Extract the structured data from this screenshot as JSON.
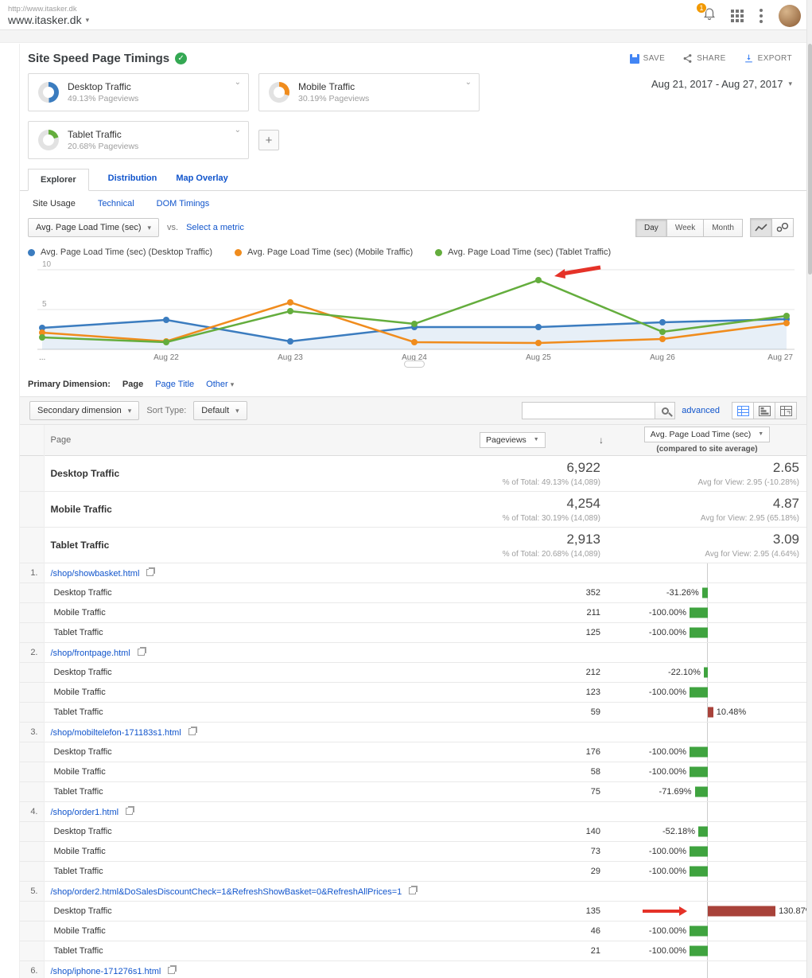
{
  "icons": {
    "caret_down": "▾",
    "select_caret": "▼",
    "sort_desc": "↓",
    "plus": "+",
    "check": "✓",
    "chevron": "⌄"
  },
  "topbar": {
    "url": "http://www.itasker.dk",
    "account": "www.itasker.dk",
    "badge": "1"
  },
  "header": {
    "title": "Site Speed Page Timings",
    "save": "SAVE",
    "share": "SHARE",
    "export": "EXPORT"
  },
  "segments": {
    "cards": [
      {
        "name": "Desktop Traffic",
        "detail": "49.13% Pageviews",
        "color": "#3b7cbf",
        "pct": 49.13
      },
      {
        "name": "Mobile Traffic",
        "detail": "30.19% Pageviews",
        "color": "#f08c1d",
        "pct": 30.19
      },
      {
        "name": "Tablet Traffic",
        "detail": "20.68% Pageviews",
        "color": "#64ad3d",
        "pct": 20.68
      }
    ]
  },
  "date_range": "Aug 21, 2017 - Aug 27, 2017",
  "tabs": {
    "explorer": "Explorer",
    "distribution": "Distribution",
    "map_overlay": "Map Overlay"
  },
  "subtabs": {
    "site_usage": "Site Usage",
    "technical": "Technical",
    "dom_timings": "DOM Timings"
  },
  "metric_bar": {
    "metric": "Avg. Page Load Time (sec)",
    "vs": "vs.",
    "select_metric": "Select a metric",
    "day": "Day",
    "week": "Week",
    "month": "Month"
  },
  "chart_data": {
    "type": "line",
    "x": [
      "...",
      "Aug 22",
      "Aug 23",
      "Aug 24",
      "Aug 25",
      "Aug 26",
      "Aug 27"
    ],
    "ylim": [
      0,
      10
    ],
    "yticks": [
      5,
      10
    ],
    "grid": true,
    "legend_position": "top",
    "series": [
      {
        "name": "Avg. Page Load Time (sec) (Desktop Traffic)",
        "color": "#3b7cbf",
        "area": true,
        "values": [
          2.7,
          3.7,
          1.0,
          2.8,
          2.8,
          3.4,
          3.8
        ]
      },
      {
        "name": "Avg. Page Load Time (sec) (Mobile Traffic)",
        "color": "#f08c1d",
        "area": false,
        "values": [
          2.1,
          1.0,
          5.9,
          0.9,
          0.8,
          1.3,
          3.3
        ]
      },
      {
        "name": "Avg. Page Load Time (sec) (Tablet Traffic)",
        "color": "#64ad3d",
        "area": false,
        "values": [
          1.5,
          0.9,
          4.8,
          3.2,
          8.7,
          2.2,
          4.2
        ]
      }
    ],
    "annotation": {
      "type": "arrow",
      "series": 2,
      "point": 4,
      "color": "#e53228"
    }
  },
  "dimension_bar": {
    "label": "Primary Dimension:",
    "page": "Page",
    "page_title": "Page Title",
    "other": "Other"
  },
  "toolbar": {
    "secondary_dimension": "Secondary dimension",
    "sort_type_label": "Sort Type:",
    "sort_value": "Default",
    "search_value": "",
    "advanced": "advanced"
  },
  "table": {
    "headers": {
      "page": "Page",
      "pageviews": "Pageviews",
      "metric": "Avg. Page Load Time (sec)",
      "metric_sub": "(compared to site average)"
    },
    "bar_colors": {
      "negative": "#3fa33f",
      "positive": "#a8423a",
      "axis": "#cccccc"
    },
    "summary": [
      {
        "name": "Desktop Traffic",
        "pageviews": "6,922",
        "pageviews_sub": "% of Total: 49.13% (14,089)",
        "value": "2.65",
        "value_sub": "Avg for View: 2.95 (-10.28%)"
      },
      {
        "name": "Mobile Traffic",
        "pageviews": "4,254",
        "pageviews_sub": "% of Total: 30.19% (14,089)",
        "value": "4.87",
        "value_sub": "Avg for View: 2.95 (65.18%)"
      },
      {
        "name": "Tablet Traffic",
        "pageviews": "2,913",
        "pageviews_sub": "% of Total: 20.68% (14,089)",
        "value": "3.09",
        "value_sub": "Avg for View: 2.95 (4.64%)"
      }
    ],
    "rows": [
      {
        "index": "1.",
        "url": "/shop/showbasket.html",
        "segments": [
          {
            "name": "Desktop Traffic",
            "pageviews": "352",
            "pct": "-31.26%",
            "value": -31.26
          },
          {
            "name": "Mobile Traffic",
            "pageviews": "211",
            "pct": "-100.00%",
            "value": -100
          },
          {
            "name": "Tablet Traffic",
            "pageviews": "125",
            "pct": "-100.00%",
            "value": -100
          }
        ]
      },
      {
        "index": "2.",
        "url": "/shop/frontpage.html",
        "segments": [
          {
            "name": "Desktop Traffic",
            "pageviews": "212",
            "pct": "-22.10%",
            "value": -22.1
          },
          {
            "name": "Mobile Traffic",
            "pageviews": "123",
            "pct": "-100.00%",
            "value": -100
          },
          {
            "name": "Tablet Traffic",
            "pageviews": "59",
            "pct": "10.48%",
            "value": 10.48
          }
        ]
      },
      {
        "index": "3.",
        "url": "/shop/mobiltelefon-171183s1.html",
        "segments": [
          {
            "name": "Desktop Traffic",
            "pageviews": "176",
            "pct": "-100.00%",
            "value": -100
          },
          {
            "name": "Mobile Traffic",
            "pageviews": "58",
            "pct": "-100.00%",
            "value": -100
          },
          {
            "name": "Tablet Traffic",
            "pageviews": "75",
            "pct": "-71.69%",
            "value": -71.69
          }
        ]
      },
      {
        "index": "4.",
        "url": "/shop/order1.html",
        "segments": [
          {
            "name": "Desktop Traffic",
            "pageviews": "140",
            "pct": "-52.18%",
            "value": -52.18
          },
          {
            "name": "Mobile Traffic",
            "pageviews": "73",
            "pct": "-100.00%",
            "value": -100
          },
          {
            "name": "Tablet Traffic",
            "pageviews": "29",
            "pct": "-100.00%",
            "value": -100
          }
        ]
      },
      {
        "index": "5.",
        "url": "/shop/order2.html&DoSalesDiscountCheck=1&RefreshShowBasket=0&RefreshAllPrices=1",
        "segments": [
          {
            "name": "Desktop Traffic",
            "pageviews": "135",
            "pct": "130.87%",
            "value": 130.87,
            "arrow": true
          },
          {
            "name": "Mobile Traffic",
            "pageviews": "46",
            "pct": "-100.00%",
            "value": -100
          },
          {
            "name": "Tablet Traffic",
            "pageviews": "21",
            "pct": "-100.00%",
            "value": -100
          }
        ]
      },
      {
        "index": "6.",
        "url": "/shop/iphone-171276s1.html",
        "segments": []
      }
    ]
  }
}
